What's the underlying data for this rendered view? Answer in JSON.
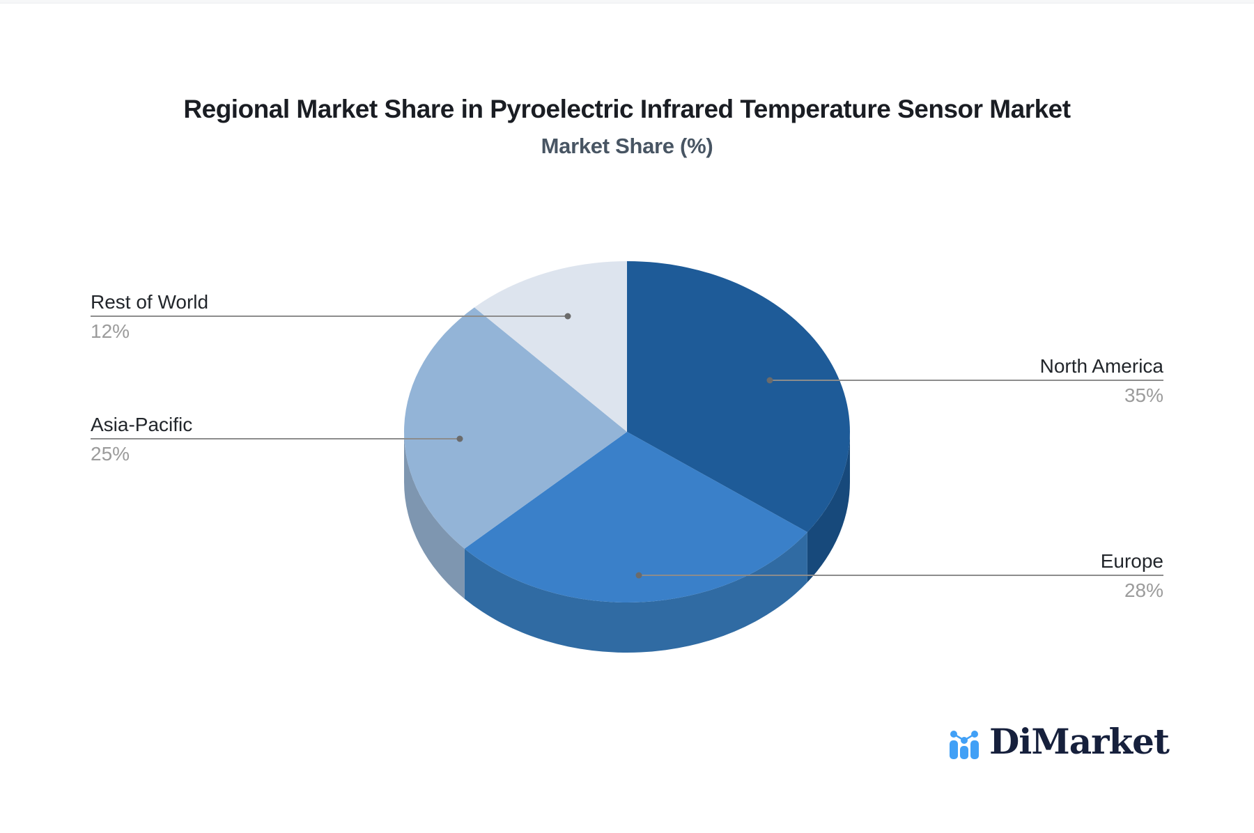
{
  "header": {
    "title": "Regional Market Share in Pyroelectric Infrared Temperature Sensor Market",
    "subtitle": "Market Share (%)"
  },
  "chart_data": {
    "type": "pie",
    "style": "3d",
    "title": "Regional Market Share in Pyroelectric Infrared Temperature Sensor Market",
    "subtitle": "Market Share (%)",
    "unit": "%",
    "categories": [
      "North America",
      "Europe",
      "Asia-Pacific",
      "Rest of World"
    ],
    "values": [
      35,
      28,
      25,
      12
    ],
    "labels_pct": [
      "35%",
      "28%",
      "25%",
      "12%"
    ],
    "colors": [
      "#1e5b98",
      "#3a80c9",
      "#93b4d7",
      "#dde4ee"
    ],
    "side_colors": [
      "#17497b",
      "#306ba3",
      "#7e96b0",
      "#c9d3e2"
    ],
    "start_angle_deg": 0,
    "direction": "clockwise",
    "legend_position": "callout-labels"
  },
  "colors": {
    "title_text": "#1a1d23",
    "subtitle_text": "#485563",
    "label_text": "#22262b",
    "pct_text": "#9b9b9b",
    "leader_line": "#8c8c8c",
    "callout_dot": "#6b6b6b",
    "background": "#ffffff"
  },
  "logo": {
    "text": "DiMarket",
    "icon": "bar-chart-logo-icon",
    "icon_color": "#41a0f6",
    "text_color": "#16203c"
  }
}
